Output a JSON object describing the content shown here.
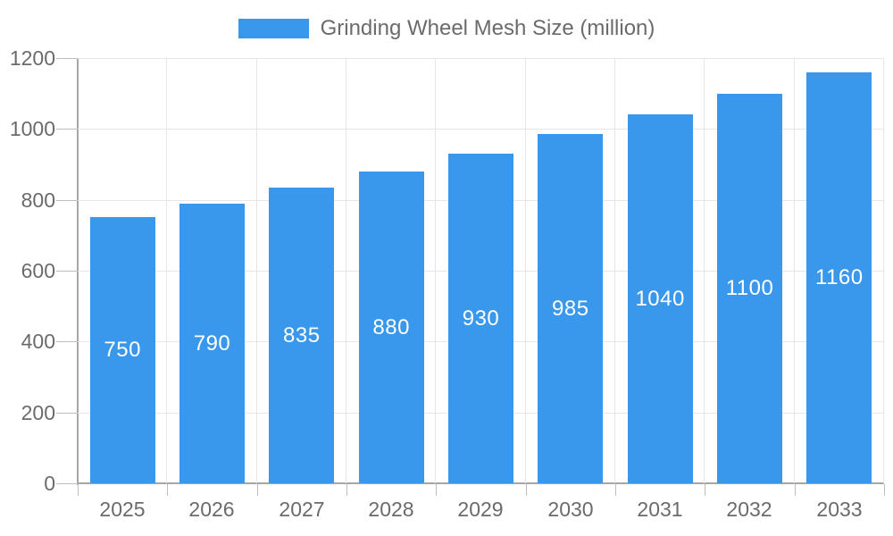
{
  "chart_data": {
    "type": "bar",
    "title": "Grinding Wheel Mesh Size (million)",
    "legend": [
      "Grinding Wheel Mesh Size (million)"
    ],
    "legend_position": "top-center",
    "categories": [
      "2025",
      "2026",
      "2027",
      "2028",
      "2029",
      "2030",
      "2031",
      "2032",
      "2033"
    ],
    "values": [
      750,
      790,
      835,
      880,
      930,
      985,
      1040,
      1100,
      1160
    ],
    "value_labels": [
      "750",
      "790",
      "835",
      "880",
      "930",
      "985",
      "1040",
      "1100",
      "1160"
    ],
    "value_label_position": "inside-center",
    "xlabel": "",
    "ylabel": "",
    "ylim": [
      0,
      1200
    ],
    "yticks": [
      0,
      200,
      400,
      600,
      800,
      1000,
      1200
    ],
    "grid": true
  },
  "colors": {
    "bar": "#3998EB",
    "value_label": "#FFFFFF",
    "grid": "#E6E6E6",
    "axis": "#A6A6A6",
    "tick": "#BEBEBE",
    "text": "#6B6B6B",
    "background": "#FFFFFF"
  }
}
